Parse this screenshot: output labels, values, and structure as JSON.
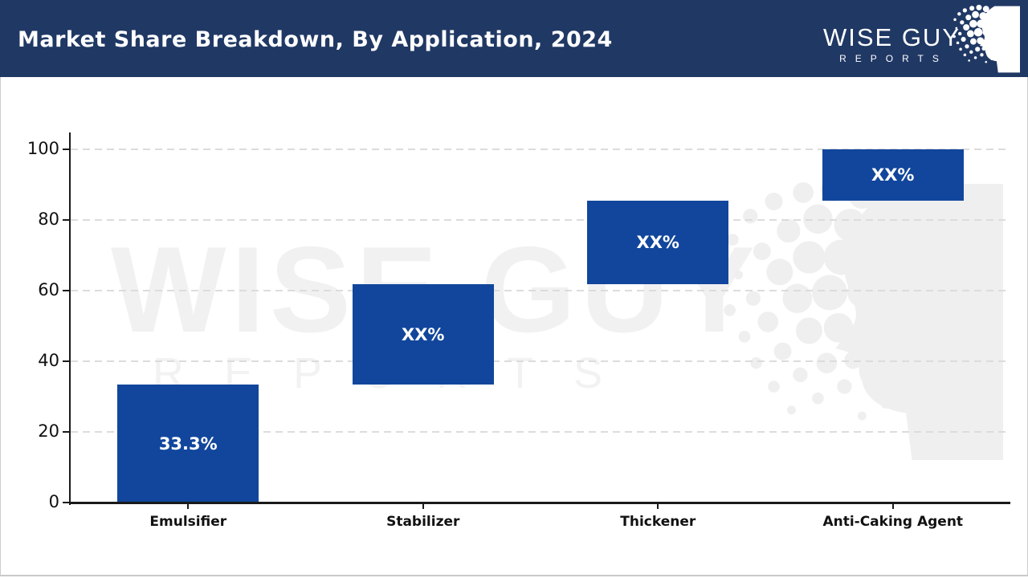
{
  "header": {
    "title": "Market Share Breakdown, By Application, 2024",
    "logo": {
      "line1": "WISE GUY",
      "line2": "REPORTS"
    }
  },
  "watermark": {
    "line1": "WISE GUY",
    "line2": "REPORTS"
  },
  "chart_data": {
    "type": "bar",
    "subtype": "waterfall-floating-bars",
    "title": "Market Share Breakdown, By Application, 2024",
    "xlabel": "",
    "ylabel": "",
    "categories": [
      "Emulsifier",
      "Stabilizer",
      "Thickener",
      "Anti-Caking Agent"
    ],
    "segments": [
      {
        "category": "Emulsifier",
        "start": 0,
        "end": 33.3,
        "label": "33.3%"
      },
      {
        "category": "Stabilizer",
        "start": 33.3,
        "end": 61.9,
        "label": "XX%"
      },
      {
        "category": "Thickener",
        "start": 61.9,
        "end": 85.5,
        "label": "XX%"
      },
      {
        "category": "Anti-Caking Agent",
        "start": 85.5,
        "end": 100,
        "label": "XX%"
      }
    ],
    "ylim": [
      0,
      100
    ],
    "yticks": [
      0,
      20,
      40,
      60,
      80,
      100
    ],
    "grid": "horizontal-dashed",
    "legend": "none",
    "bar_color": "#11469c",
    "bar_label_color": "#ffffff"
  },
  "colors": {
    "header_bg": "#203864",
    "bar": "#11469c",
    "gridline": "#dcdcdc",
    "axis": "#1a1a1a",
    "watermark": "#f1f1f1"
  }
}
